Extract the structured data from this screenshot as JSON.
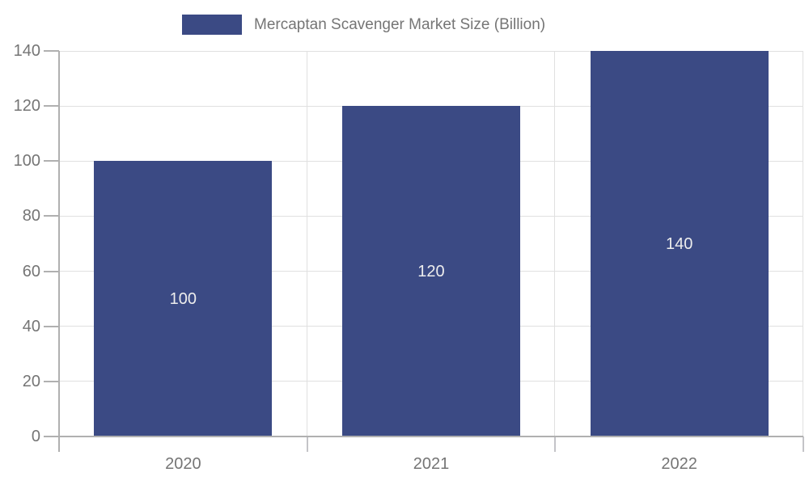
{
  "chart": {
    "legend": {
      "label": "Mercaptan Scavenger Market Size (Billion)"
    }
  },
  "chart_data": {
    "type": "bar",
    "title": "Mercaptan Scavenger Market Size (Billion)",
    "categories": [
      "2020",
      "2021",
      "2022"
    ],
    "series": [
      {
        "name": "Mercaptan Scavenger Market Size (Billion)",
        "values": [
          100,
          120,
          140
        ]
      }
    ],
    "data_labels_shown": true,
    "data_labels": [
      "100",
      "120",
      "140"
    ],
    "yticks": [
      "0",
      "20",
      "40",
      "60",
      "80",
      "100",
      "120",
      "140"
    ],
    "ytick_values": [
      0,
      20,
      40,
      60,
      80,
      100,
      120,
      140
    ],
    "ylim": [
      0,
      140
    ],
    "grid": true,
    "legend_position": "top-center",
    "colors": {
      "bar": "#3b4a84",
      "bar_label_text": "#ededed",
      "axis": "#b0b0b0",
      "grid": "#e0e0e0",
      "boundary_tick": "#c4c4c8",
      "tick_text": "#757575",
      "background": "#ffffff"
    }
  }
}
